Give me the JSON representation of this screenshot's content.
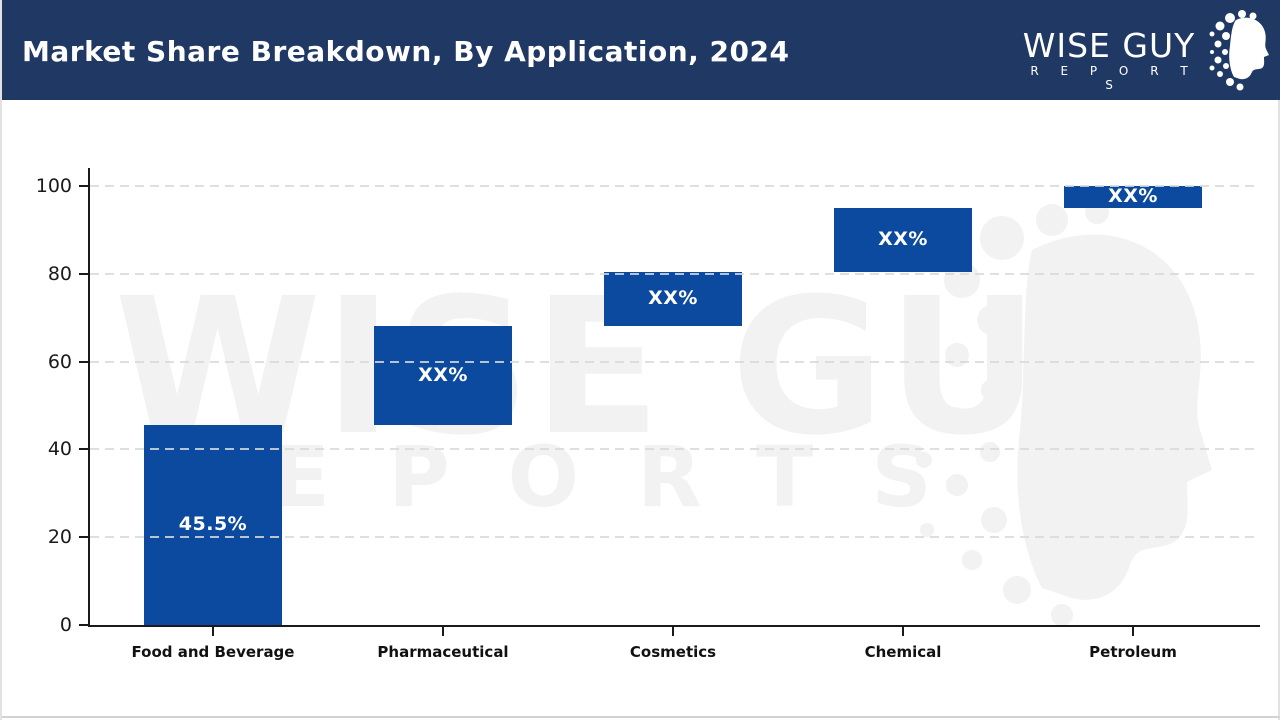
{
  "header": {
    "title": "Market Share Breakdown, By Application, 2024",
    "logo": {
      "wordmark": "WISE GUY",
      "subline": "R E P O R T S",
      "face_icon": "dotted-face-profile"
    },
    "background_color": "#1f3864"
  },
  "watermark": {
    "line1": "WISE GUY",
    "line2": "REPORTS",
    "face_icon": "dotted-face-profile",
    "color": "#f2f2f2"
  },
  "chart_data": {
    "type": "bar",
    "subtype": "waterfall",
    "title": "Market Share Breakdown, By Application, 2024",
    "xlabel": "",
    "ylabel": "",
    "categories": [
      "Food and Beverage",
      "Pharmaceutical",
      "Cosmetics",
      "Chemical",
      "Petroleum"
    ],
    "segments": [
      {
        "category": "Food and Beverage",
        "label": "45.5%",
        "start": 0,
        "end": 45.5
      },
      {
        "category": "Pharmaceutical",
        "label": "XX%",
        "start": 45.5,
        "end": 68
      },
      {
        "category": "Cosmetics",
        "label": "XX%",
        "start": 68,
        "end": 80.5
      },
      {
        "category": "Chemical",
        "label": "XX%",
        "start": 80.5,
        "end": 95
      },
      {
        "category": "Petroleum",
        "label": "XX%",
        "start": 95,
        "end": 100
      }
    ],
    "yticks": [
      "0",
      "20",
      "40",
      "60",
      "80",
      "100"
    ],
    "ylim": [
      0,
      100
    ],
    "grid": "horizontal-dashed",
    "legend": "none",
    "bar_color": "#0b4a9e",
    "label_color": "#ffffff"
  }
}
